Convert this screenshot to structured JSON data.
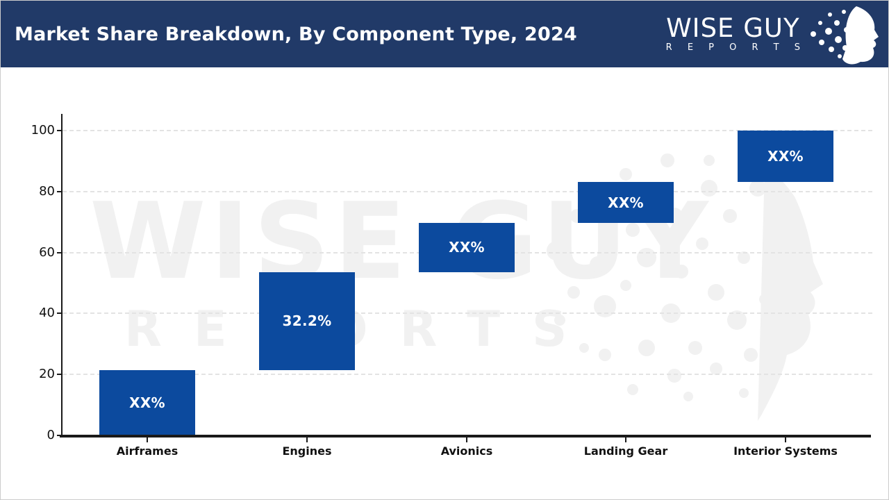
{
  "header": {
    "title": "Market Share Breakdown, By Component Type, 2024",
    "logo_line1": "WISE GUY",
    "logo_line2": "R E P O R T S"
  },
  "watermark": {
    "line1": "WISE GUY",
    "line2": "REPORTS"
  },
  "colors": {
    "header_bg": "#213a68",
    "bar": "#0c4a9e",
    "bar_label_text": "#ffffff",
    "gridline": "#e3e3e3",
    "axis": "#1a1a1a",
    "watermark": "#f1f1f1",
    "page_border": "#cccccc"
  },
  "chart_data": {
    "type": "bar",
    "subtype": "waterfall",
    "title": "Market Share Breakdown, By Component Type, 2024",
    "categories": [
      "Airframes",
      "Engines",
      "Avionics",
      "Landing Gear",
      "Interior Systems"
    ],
    "values": [
      21.4,
      32.2,
      16.1,
      13.4,
      16.9
    ],
    "cumulative_start": [
      0,
      21.4,
      53.6,
      69.7,
      83.1
    ],
    "cumulative_end": [
      21.4,
      53.6,
      69.7,
      83.1,
      100
    ],
    "bar_labels": [
      "XX%",
      "32.2%",
      "XX%",
      "XX%",
      "XX%"
    ],
    "yticks": [
      0,
      20,
      40,
      60,
      80,
      100
    ],
    "ylim": [
      0,
      105
    ],
    "xlabel": "",
    "ylabel": "",
    "grid": "horizontal-dashed",
    "legend": "none"
  }
}
